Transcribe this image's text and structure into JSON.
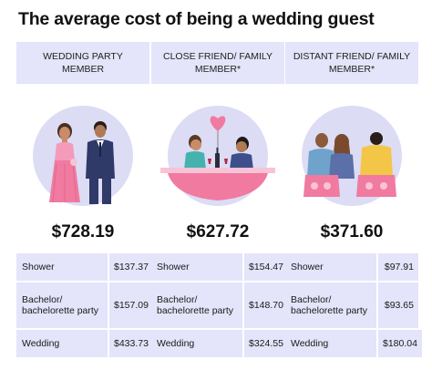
{
  "title": "The average cost of being a wedding guest",
  "columns": [
    {
      "header": "WEDDING PARTY MEMBER",
      "illustration": "bride-and-groom-icon",
      "total": "$728.19",
      "rows": [
        {
          "label": "Shower",
          "value": "$137.37"
        },
        {
          "label": "Bachelor/ bachelorette party",
          "value": "$157.09"
        },
        {
          "label": "Wedding",
          "value": "$433.73"
        }
      ]
    },
    {
      "header": "CLOSE FRIEND/ FAMILY MEMBER*",
      "illustration": "couple-at-table-icon",
      "total": "$627.72",
      "rows": [
        {
          "label": "Shower",
          "value": "$154.47"
        },
        {
          "label": "Bachelor/ bachelorette party",
          "value": "$148.70"
        },
        {
          "label": "Wedding",
          "value": "$324.55"
        }
      ]
    },
    {
      "header": "DISTANT FRIEND/ FAMILY MEMBER*",
      "illustration": "guests-from-behind-icon",
      "total": "$371.60",
      "rows": [
        {
          "label": "Shower",
          "value": "$97.91"
        },
        {
          "label": "Bachelor/ bachelorette party",
          "value": "$93.65"
        },
        {
          "label": "Wedding",
          "value": "$180.04"
        }
      ]
    }
  ],
  "colors": {
    "header_bg": "#e4e4fa",
    "circle_bg": "#dcdcf5",
    "accent_pink": "#f07aa0"
  }
}
